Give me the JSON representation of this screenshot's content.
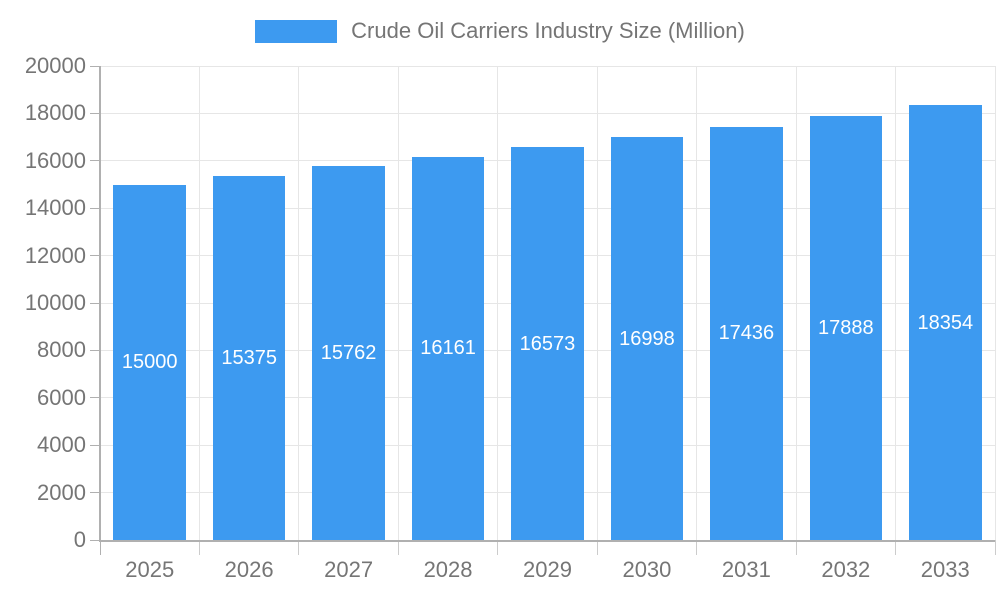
{
  "legend": {
    "label": "Crude Oil Carriers Industry Size (Million)"
  },
  "chart_data": {
    "type": "bar",
    "title": "Crude Oil Carriers Industry Size (Million)",
    "categories": [
      "2025",
      "2026",
      "2027",
      "2028",
      "2029",
      "2030",
      "2031",
      "2032",
      "2033"
    ],
    "values": [
      15000,
      15375,
      15762,
      16161,
      16573,
      16998,
      17436,
      17888,
      18354
    ],
    "xlabel": "",
    "ylabel": "",
    "ylim": [
      0,
      20000
    ],
    "ytick_step": 2000,
    "ytick_labels": [
      "0",
      "2000",
      "4000",
      "6000",
      "8000",
      "10000",
      "12000",
      "14000",
      "16000",
      "18000",
      "20000"
    ],
    "grid": true,
    "legend_position": "top",
    "bar_labels_visible": true
  },
  "colors": {
    "bar": "#3d9af0",
    "bar_label": "#ffffff",
    "axis_text": "#757575",
    "axis_line": "#b0b0b0",
    "gridline": "#e6e6e6",
    "x_tick": "#cccccc",
    "background": "#ffffff"
  }
}
